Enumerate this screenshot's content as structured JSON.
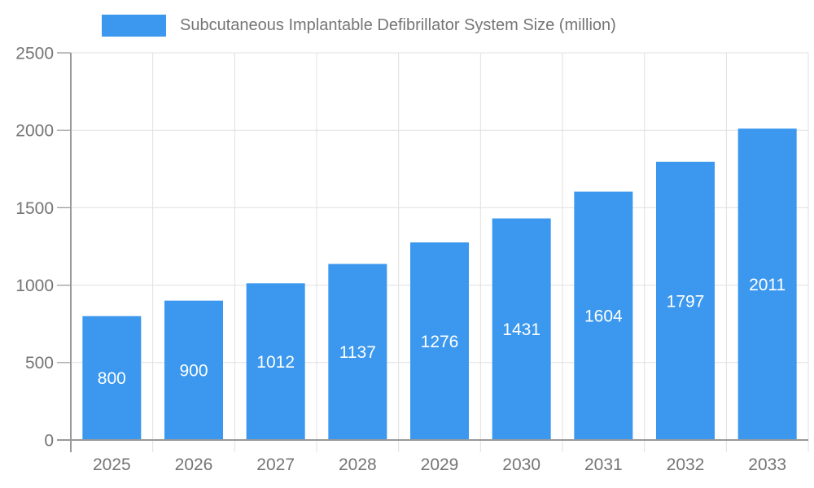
{
  "chart_data": {
    "type": "bar",
    "title": "Subcutaneous Implantable Defibrillator System Size (million)",
    "categories": [
      "2025",
      "2026",
      "2027",
      "2028",
      "2029",
      "2030",
      "2031",
      "2032",
      "2033"
    ],
    "values": [
      800,
      900,
      1012,
      1137,
      1276,
      1431,
      1604,
      1797,
      2011
    ],
    "series": [
      {
        "name": "Subcutaneous Implantable Defibrillator System Size (million)",
        "values": [
          800,
          900,
          1012,
          1137,
          1276,
          1431,
          1604,
          1797,
          2011
        ]
      }
    ],
    "xlabel": "",
    "ylabel": "",
    "ylim": [
      0,
      2500
    ],
    "yticks": [
      0,
      500,
      1000,
      1500,
      2000,
      2500
    ],
    "grid": true,
    "legend_position": "top",
    "value_labels": "inside-center",
    "colors": {
      "bar": "#3b98ee",
      "grid": "#e0e0e0",
      "axis": "#999999",
      "tick_label": "#757575",
      "value_label": "#ffffff",
      "title": "#757575"
    }
  }
}
